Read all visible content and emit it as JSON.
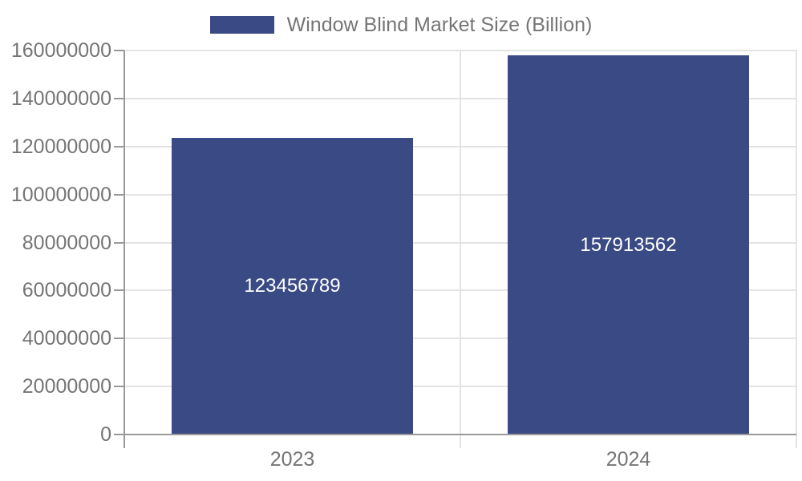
{
  "legend": {
    "label": "Window Blind Market Size (Billion)"
  },
  "chart_data": {
    "type": "bar",
    "title": "Window Blind Market Size (Billion)",
    "categories": [
      "2023",
      "2024"
    ],
    "series": [
      {
        "name": "Window Blind Market Size (Billion)",
        "values": [
          123456789,
          157913562
        ]
      }
    ],
    "bar_value_labels": [
      "123456789",
      "157913562"
    ],
    "yticks": [
      0,
      20000000,
      40000000,
      60000000,
      80000000,
      100000000,
      120000000,
      140000000,
      160000000
    ],
    "ylim": [
      0,
      160000000
    ],
    "xlabel": "",
    "ylabel": "",
    "grid": true,
    "legend_position": "top-center",
    "colors": {
      "bar": "#3A4A85",
      "bar_label": "#FFFFFF",
      "axis_text": "#757575",
      "axis_line": "#999999",
      "gridline": "#E3E3E3"
    }
  }
}
